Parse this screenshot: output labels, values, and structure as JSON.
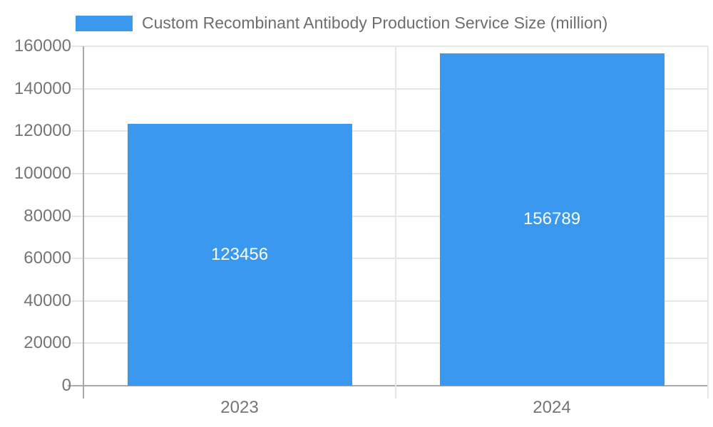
{
  "chart_data": {
    "type": "bar",
    "title": "Custom Recombinant Antibody Production Service Size (million)",
    "categories": [
      "2023",
      "2024"
    ],
    "values": [
      123456,
      156789
    ],
    "bar_labels": [
      "123456",
      "156789"
    ],
    "xlabel": "",
    "ylabel": "",
    "ylim": [
      0,
      160000
    ],
    "yticks": [
      0,
      20000,
      40000,
      60000,
      80000,
      100000,
      120000,
      140000,
      160000
    ],
    "grid": true,
    "legend_position": "top-left",
    "colors": {
      "bar": "#3a99ee",
      "grid_line": "#e6e6e6",
      "axis_line": "#aaaaaa",
      "tick_text": "#757575",
      "legend_text": "#6e6e6e",
      "bar_label_text": "#ffffff",
      "background": "#ffffff"
    }
  }
}
